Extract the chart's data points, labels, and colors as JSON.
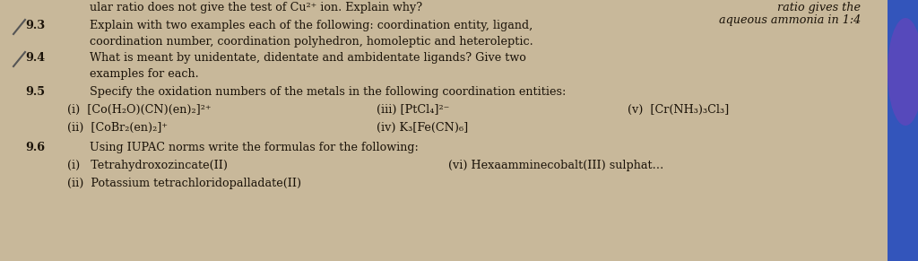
{
  "page_bg": "#c8b89a",
  "text_color": "#1a1208",
  "blue_mark_color": "#2244aa",
  "font_size": 9.5,
  "bold_size": 10.5,
  "top_line1": "ular ratio does not give the test of Cu²⁺ ion. Explain why?",
  "top_right1": "ratio gives the",
  "top_right2": "aqueous ammonia in 1:4",
  "q93_label": "9.3",
  "q93_line1": "Explain with two examples each of the following: coordination entity, ligand,",
  "q93_line2": "coordination number, coordination polyhedron, homoleptic and heteroleptic.",
  "q94_label": "9.4",
  "q94_line1": "What is meant by unidentate, didentate and ambidentate ligands? Give two",
  "q94_line2": "examples for each.",
  "q95_label": "9.5",
  "q95_line1": "Specify the oxidation numbers of the metals in the following coordination entities:",
  "q95_i": "(i)  [Co(H₂O)(CN)(en)₂]²⁺",
  "q95_iii": "(iii) [PtCl₄]²⁻",
  "q95_v": "(v)  [Cr(NH₃)₃Cl₃]",
  "q95_ii": "(ii)  [CoBr₂(en)₂]⁺",
  "q95_iv": "(iv) K₃[Fe(CN)₆]",
  "q96_label": "9.6",
  "q96_line1": "Using IUPAC norms write the formulas for the following:",
  "q96_i": "(i)   Tetrahydroxozincate(II)",
  "q96_vi": "(vi) Hexaamminecobalt(III) sulphat…",
  "q96_ii": "(ii)  Potassium tetrachloridopalladate(II)"
}
